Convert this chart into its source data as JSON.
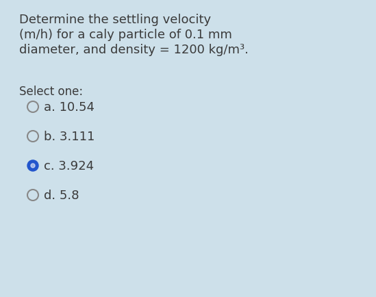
{
  "background_color": "#cde0ea",
  "question_lines": [
    "Determine the settling velocity",
    "(m/h) for a caly particle of 0.1 mm",
    "diameter, and density = 1200 kg/m³."
  ],
  "select_one_text": "Select one:",
  "options": [
    {
      "label": "a. 10.54",
      "selected": false
    },
    {
      "label": "b. 3.111",
      "selected": false
    },
    {
      "label": "c. 3.924",
      "selected": true
    },
    {
      "label": "d. 5.8",
      "selected": false
    }
  ],
  "text_color": "#3a3a3a",
  "question_fontsize": 13.0,
  "option_fontsize": 13.0,
  "select_one_fontsize": 12.0,
  "radio_selected_color": "#2255cc",
  "radio_unselected_edge": "#888888"
}
